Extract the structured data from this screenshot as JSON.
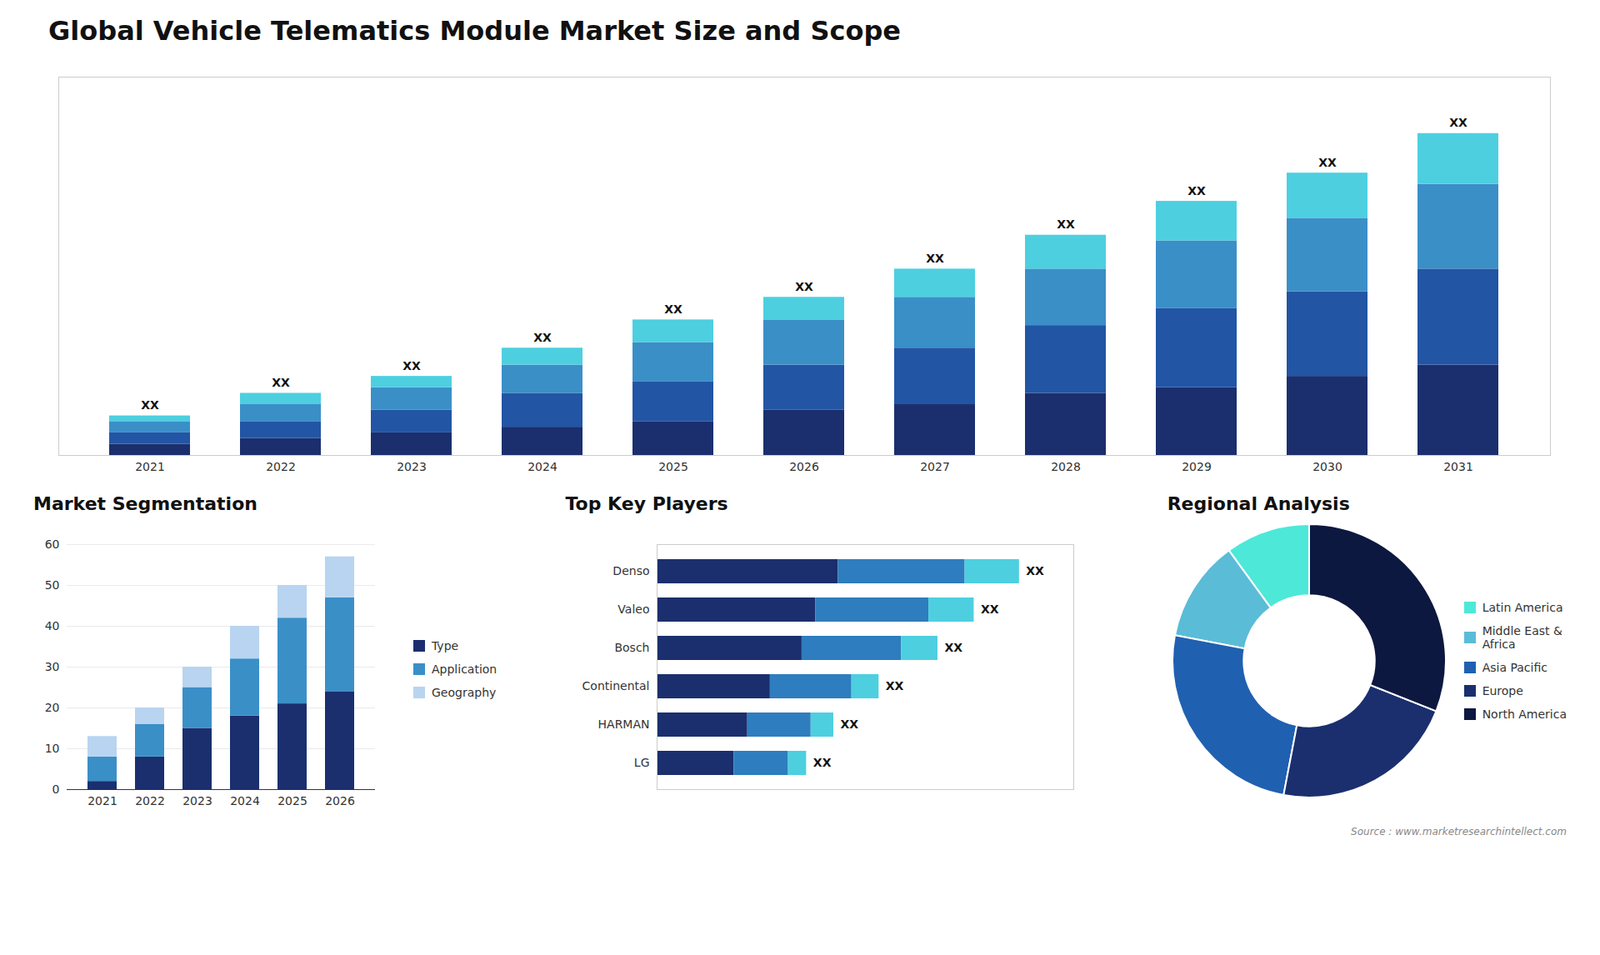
{
  "chart_data": [
    {
      "type": "bar",
      "title": "Global Vehicle Telematics Module Market Size and Scope",
      "categories": [
        "2021",
        "2022",
        "2023",
        "2024",
        "2025",
        "2026",
        "2027",
        "2028",
        "2029",
        "2030",
        "2031"
      ],
      "stacked": true,
      "series": [
        {
          "color": "#1b2f6e",
          "values": [
            2,
            3,
            4,
            5,
            6,
            8,
            9,
            11,
            12,
            14,
            16
          ]
        },
        {
          "color": "#2255a4",
          "values": [
            2,
            3,
            4,
            6,
            7,
            8,
            10,
            12,
            14,
            15,
            17
          ]
        },
        {
          "color": "#3a8fc7",
          "values": [
            2,
            3,
            4,
            5,
            7,
            8,
            9,
            10,
            12,
            13,
            15
          ]
        },
        {
          "color": "#4dcfe0",
          "values": [
            1,
            2,
            2,
            3,
            4,
            4,
            5,
            6,
            7,
            8,
            9
          ]
        }
      ],
      "ylim": [
        0,
        67
      ],
      "grid": false,
      "tick_labels": "x",
      "annotations": [
        {
          "x": "2021",
          "text": "XX"
        },
        {
          "x": "2022",
          "text": "XX"
        },
        {
          "x": "2023",
          "text": "XX"
        },
        {
          "x": "2024",
          "text": "XX"
        },
        {
          "x": "2025",
          "text": "XX"
        },
        {
          "x": "2026",
          "text": "XX"
        },
        {
          "x": "2027",
          "text": "XX"
        },
        {
          "x": "2028",
          "text": "XX"
        },
        {
          "x": "2029",
          "text": "XX"
        },
        {
          "x": "2030",
          "text": "XX"
        },
        {
          "x": "2031",
          "text": "XX"
        }
      ]
    },
    {
      "type": "bar",
      "title": "Market Segmentation",
      "categories": [
        "2021",
        "2022",
        "2023",
        "2024",
        "2025",
        "2026"
      ],
      "stacked": true,
      "series": [
        {
          "name": "Type",
          "color": "#1b2f6e",
          "values": [
            2,
            8,
            15,
            18,
            21,
            24
          ]
        },
        {
          "name": "Application",
          "color": "#3a8fc7",
          "values": [
            6,
            8,
            10,
            14,
            21,
            23
          ]
        },
        {
          "name": "Geography",
          "color": "#b8d4f0",
          "values": [
            5,
            4,
            5,
            8,
            8,
            10
          ]
        }
      ],
      "ylim": [
        0,
        60
      ],
      "yticks": [
        0,
        10,
        20,
        30,
        40,
        50,
        60
      ],
      "grid": true,
      "legend": "right"
    },
    {
      "type": "bar",
      "title": "Top Key Players",
      "orientation": "horizontal",
      "categories": [
        "Denso",
        "Valeo",
        "Bosch",
        "Continental",
        "HARMAN",
        "LG"
      ],
      "stacked": true,
      "series": [
        {
          "color": "#1b2f6e",
          "values": [
            40,
            35,
            32,
            25,
            20,
            17
          ]
        },
        {
          "color": "#2e7dbe",
          "values": [
            28,
            25,
            22,
            18,
            14,
            12
          ]
        },
        {
          "color": "#4dcfe0",
          "values": [
            12,
            10,
            8,
            6,
            5,
            4
          ]
        }
      ],
      "xlim": [
        0,
        92
      ],
      "grid": false,
      "tick_labels": "y",
      "annotations": [
        {
          "y": "Denso",
          "text": "XX"
        },
        {
          "y": "Valeo",
          "text": "XX"
        },
        {
          "y": "Bosch",
          "text": "XX"
        },
        {
          "y": "Continental",
          "text": "XX"
        },
        {
          "y": "HARMAN",
          "text": "XX"
        },
        {
          "y": "LG",
          "text": "XX"
        }
      ]
    },
    {
      "type": "pie",
      "title": "Regional Analysis",
      "categories": [
        "Latin America",
        "Middle East &\nAfrica",
        "Asia Pacific",
        "Europe",
        "North America"
      ],
      "values": [
        10,
        12,
        25,
        22,
        31
      ],
      "colors": [
        "#4de8d8",
        "#5bbcd8",
        "#2060b0",
        "#1b2f6e",
        "#0d1840"
      ],
      "legend": "right",
      "annotations": [
        "Source : www.marketresearchintellect.com"
      ]
    }
  ]
}
